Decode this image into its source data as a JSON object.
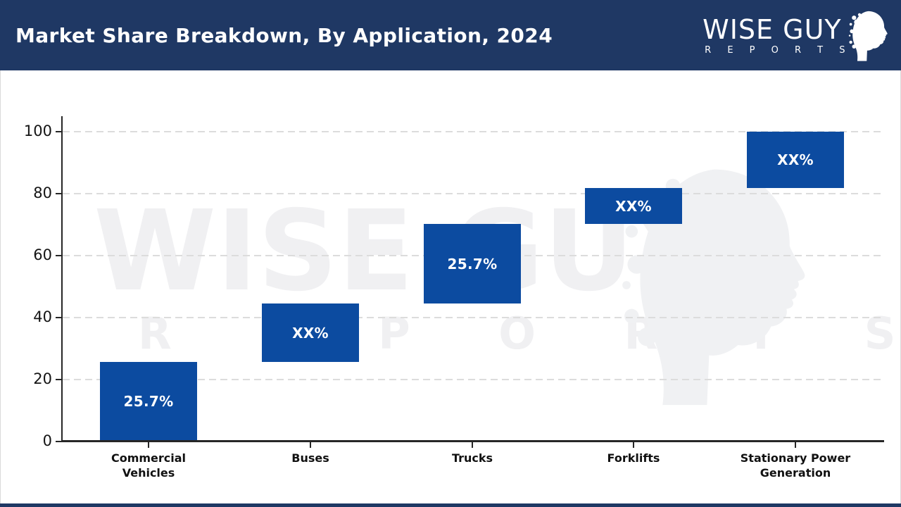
{
  "header": {
    "title": "Market Share Breakdown, By Application, 2024",
    "bg_color": "#1F3864",
    "logo": {
      "name": "WISE GUY",
      "sub": "R E P O R T S"
    }
  },
  "watermark": {
    "name": "WISE GUY",
    "sub": "R E P O R T S"
  },
  "chart_data": {
    "type": "bar",
    "subtype": "waterfall",
    "title": "Market Share Breakdown, By Application, 2024",
    "categories": [
      "Commercial Vehicles",
      "Buses",
      "Trucks",
      "Forklifts",
      "Stationary Power Generation"
    ],
    "segments": [
      {
        "category": "Commercial Vehicles",
        "start": 0,
        "end": 25.7,
        "label": "25.7%"
      },
      {
        "category": "Buses",
        "start": 25.7,
        "end": 44.5,
        "label": "XX%"
      },
      {
        "category": "Trucks",
        "start": 44.5,
        "end": 70.2,
        "label": "25.7%"
      },
      {
        "category": "Forklifts",
        "start": 70.2,
        "end": 81.8,
        "label": "XX%"
      },
      {
        "category": "Stationary Power Generation",
        "start": 81.8,
        "end": 100,
        "label": "XX%"
      }
    ],
    "xlabel": "",
    "ylabel": "",
    "ylim": [
      0,
      100
    ],
    "yticks": [
      0,
      20,
      40,
      60,
      80,
      100
    ],
    "grid": "horizontal-dashed",
    "legend": "none",
    "bar_color": "#0C4BA0",
    "bar_label_color": "#FFFFFF",
    "axis_color": "#262626",
    "gridline_color": "#DCDCDC"
  }
}
